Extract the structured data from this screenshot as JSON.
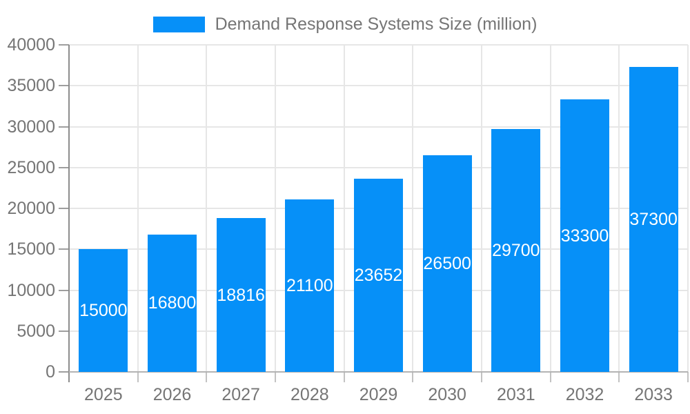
{
  "legend": {
    "items": [
      {
        "label": "Demand Response Systems Size (million)",
        "color": "#0690f8"
      }
    ]
  },
  "chart_data": {
    "type": "bar",
    "title": "Demand Response Systems Size (million)",
    "categories": [
      "2025",
      "2026",
      "2027",
      "2028",
      "2029",
      "2030",
      "2031",
      "2032",
      "2033"
    ],
    "series": [
      {
        "name": "Demand Response Systems Size (million)",
        "color": "#0690f8",
        "values": [
          15000,
          16800,
          18816,
          21100,
          23652,
          26500,
          29700,
          33300,
          37300
        ]
      }
    ],
    "bar_labels": "inside-center",
    "bar_label_color": "#ffffff",
    "xlabel": "",
    "ylabel": "",
    "ylim": [
      0,
      40000
    ],
    "yticks": [
      0,
      5000,
      10000,
      15000,
      20000,
      25000,
      30000,
      35000,
      40000
    ],
    "grid": true,
    "legend_position": "top"
  },
  "colors": {
    "background": "#ffffff",
    "bar": "#0690f8",
    "grid": "#e6e6e6",
    "axis_text": "#757575",
    "bar_label_text": "#ffffff",
    "y_axis_line": "#8c8c8c",
    "x_axis_line": "#b3b3b3",
    "x_tick": "#c2c2c2",
    "y_tick": "#9e9e9e"
  }
}
